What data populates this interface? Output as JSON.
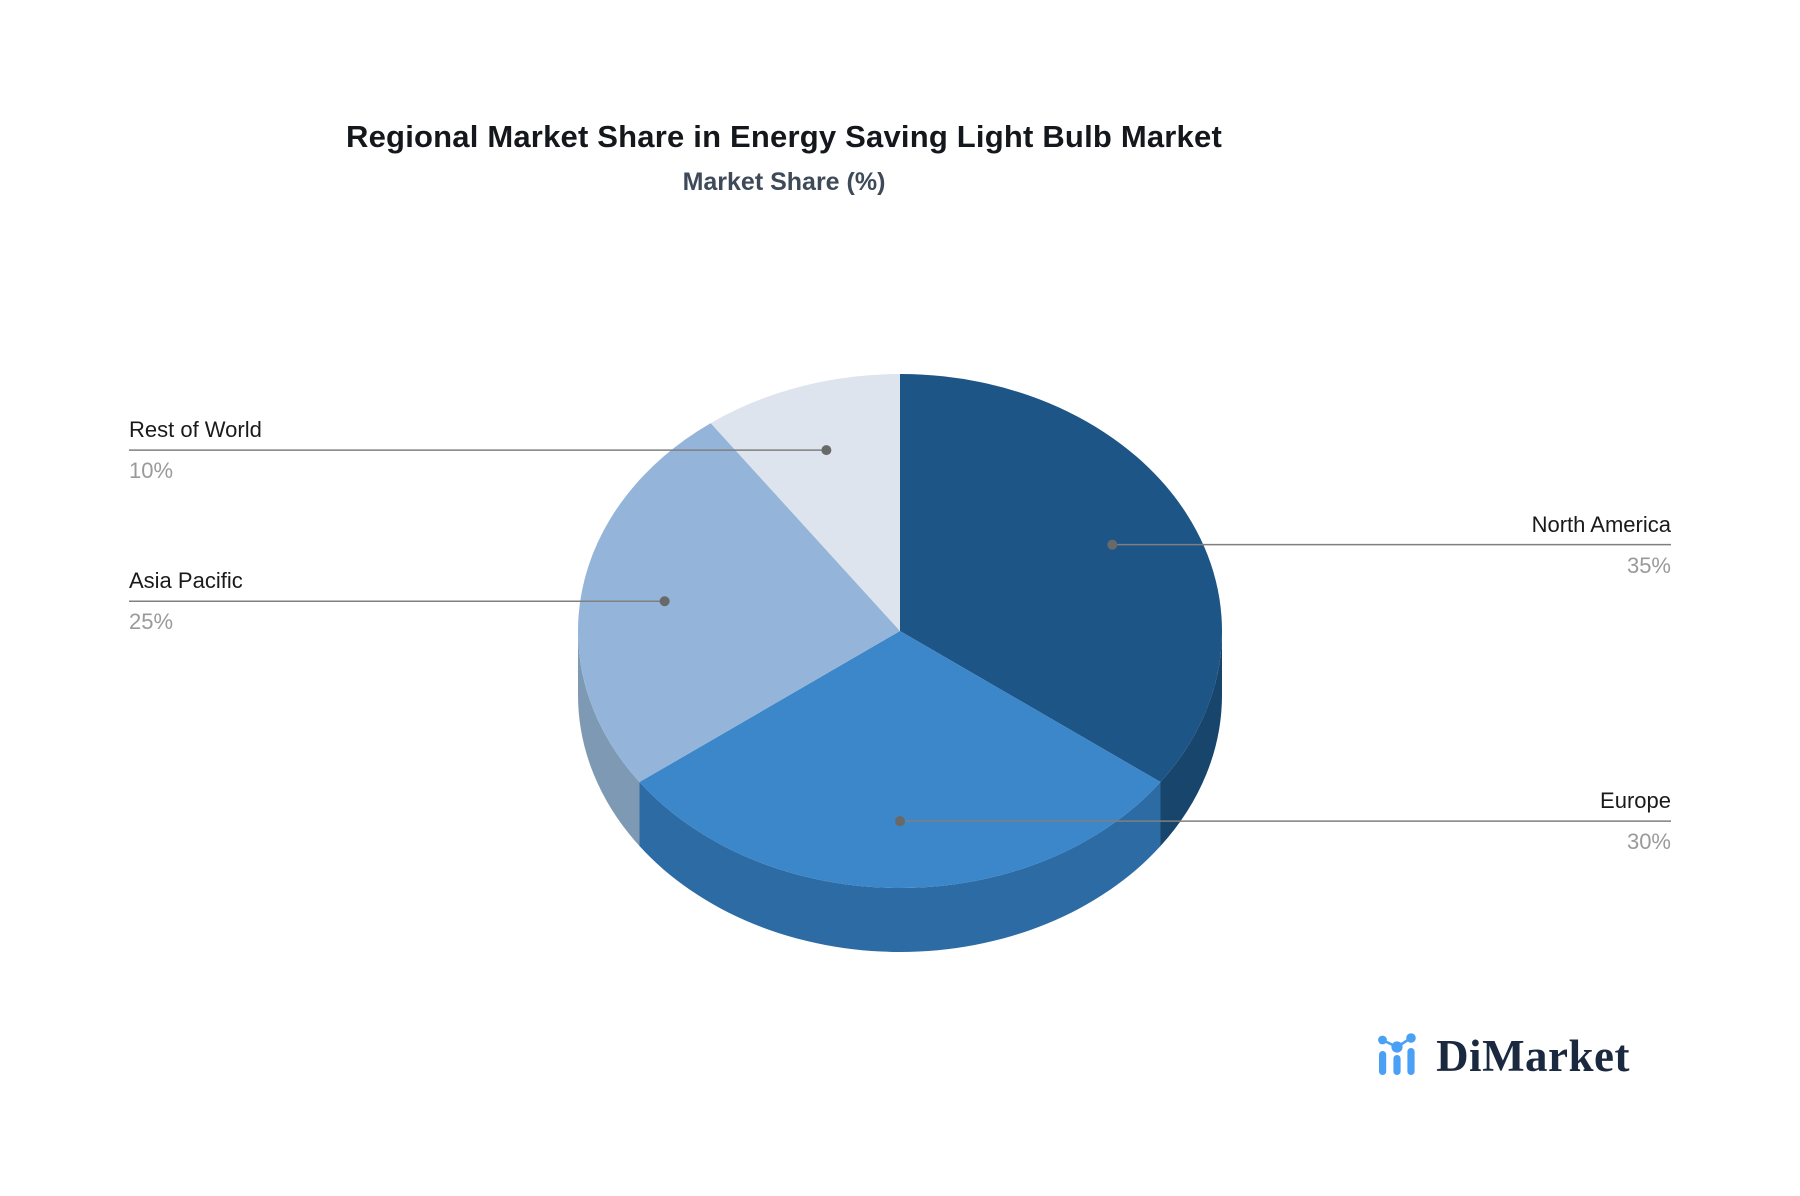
{
  "chart": {
    "title": "Regional Market Share in Energy Saving Light Bulb Market",
    "subtitle": "Market Share (%)"
  },
  "chart_data": {
    "type": "pie",
    "style": "3d",
    "title": "Regional Market Share in Energy Saving Light Bulb Market",
    "subtitle": "Market Share (%)",
    "unit": "%",
    "direction": "clockwise",
    "start_angle": "12-o-clock",
    "categories": [
      "North America",
      "Europe",
      "Asia Pacific",
      "Rest of World"
    ],
    "values": [
      35,
      30,
      25,
      10
    ],
    "slices": [
      {
        "label": "North America",
        "value": 35,
        "pct_label": "35%",
        "color": "#1d5586",
        "side_color": "#17456c",
        "label_side": "right"
      },
      {
        "label": "Europe",
        "value": 30,
        "pct_label": "30%",
        "color": "#3b87c9",
        "side_color": "#2d6ba4",
        "label_side": "right"
      },
      {
        "label": "Asia Pacific",
        "value": 25,
        "pct_label": "25%",
        "color": "#94b5d9",
        "side_color": "#7e99b4",
        "label_side": "left"
      },
      {
        "label": "Rest of World",
        "value": 10,
        "pct_label": "10%",
        "color": "#dde4ee",
        "side_color": "#c3ccda",
        "label_side": "left"
      }
    ],
    "legend_position": "none",
    "grid": false,
    "leader_line_color": "#7f7f7f",
    "leader_dot_color": "#696969",
    "label_text_color": "#1a1a1a",
    "pct_text_color": "#9a9a9a"
  },
  "brand": {
    "name": "DiMarket",
    "icon": "bar-chart-logo-icon",
    "icon_color": "#4aa0f5",
    "text_color": "#1b2940"
  }
}
